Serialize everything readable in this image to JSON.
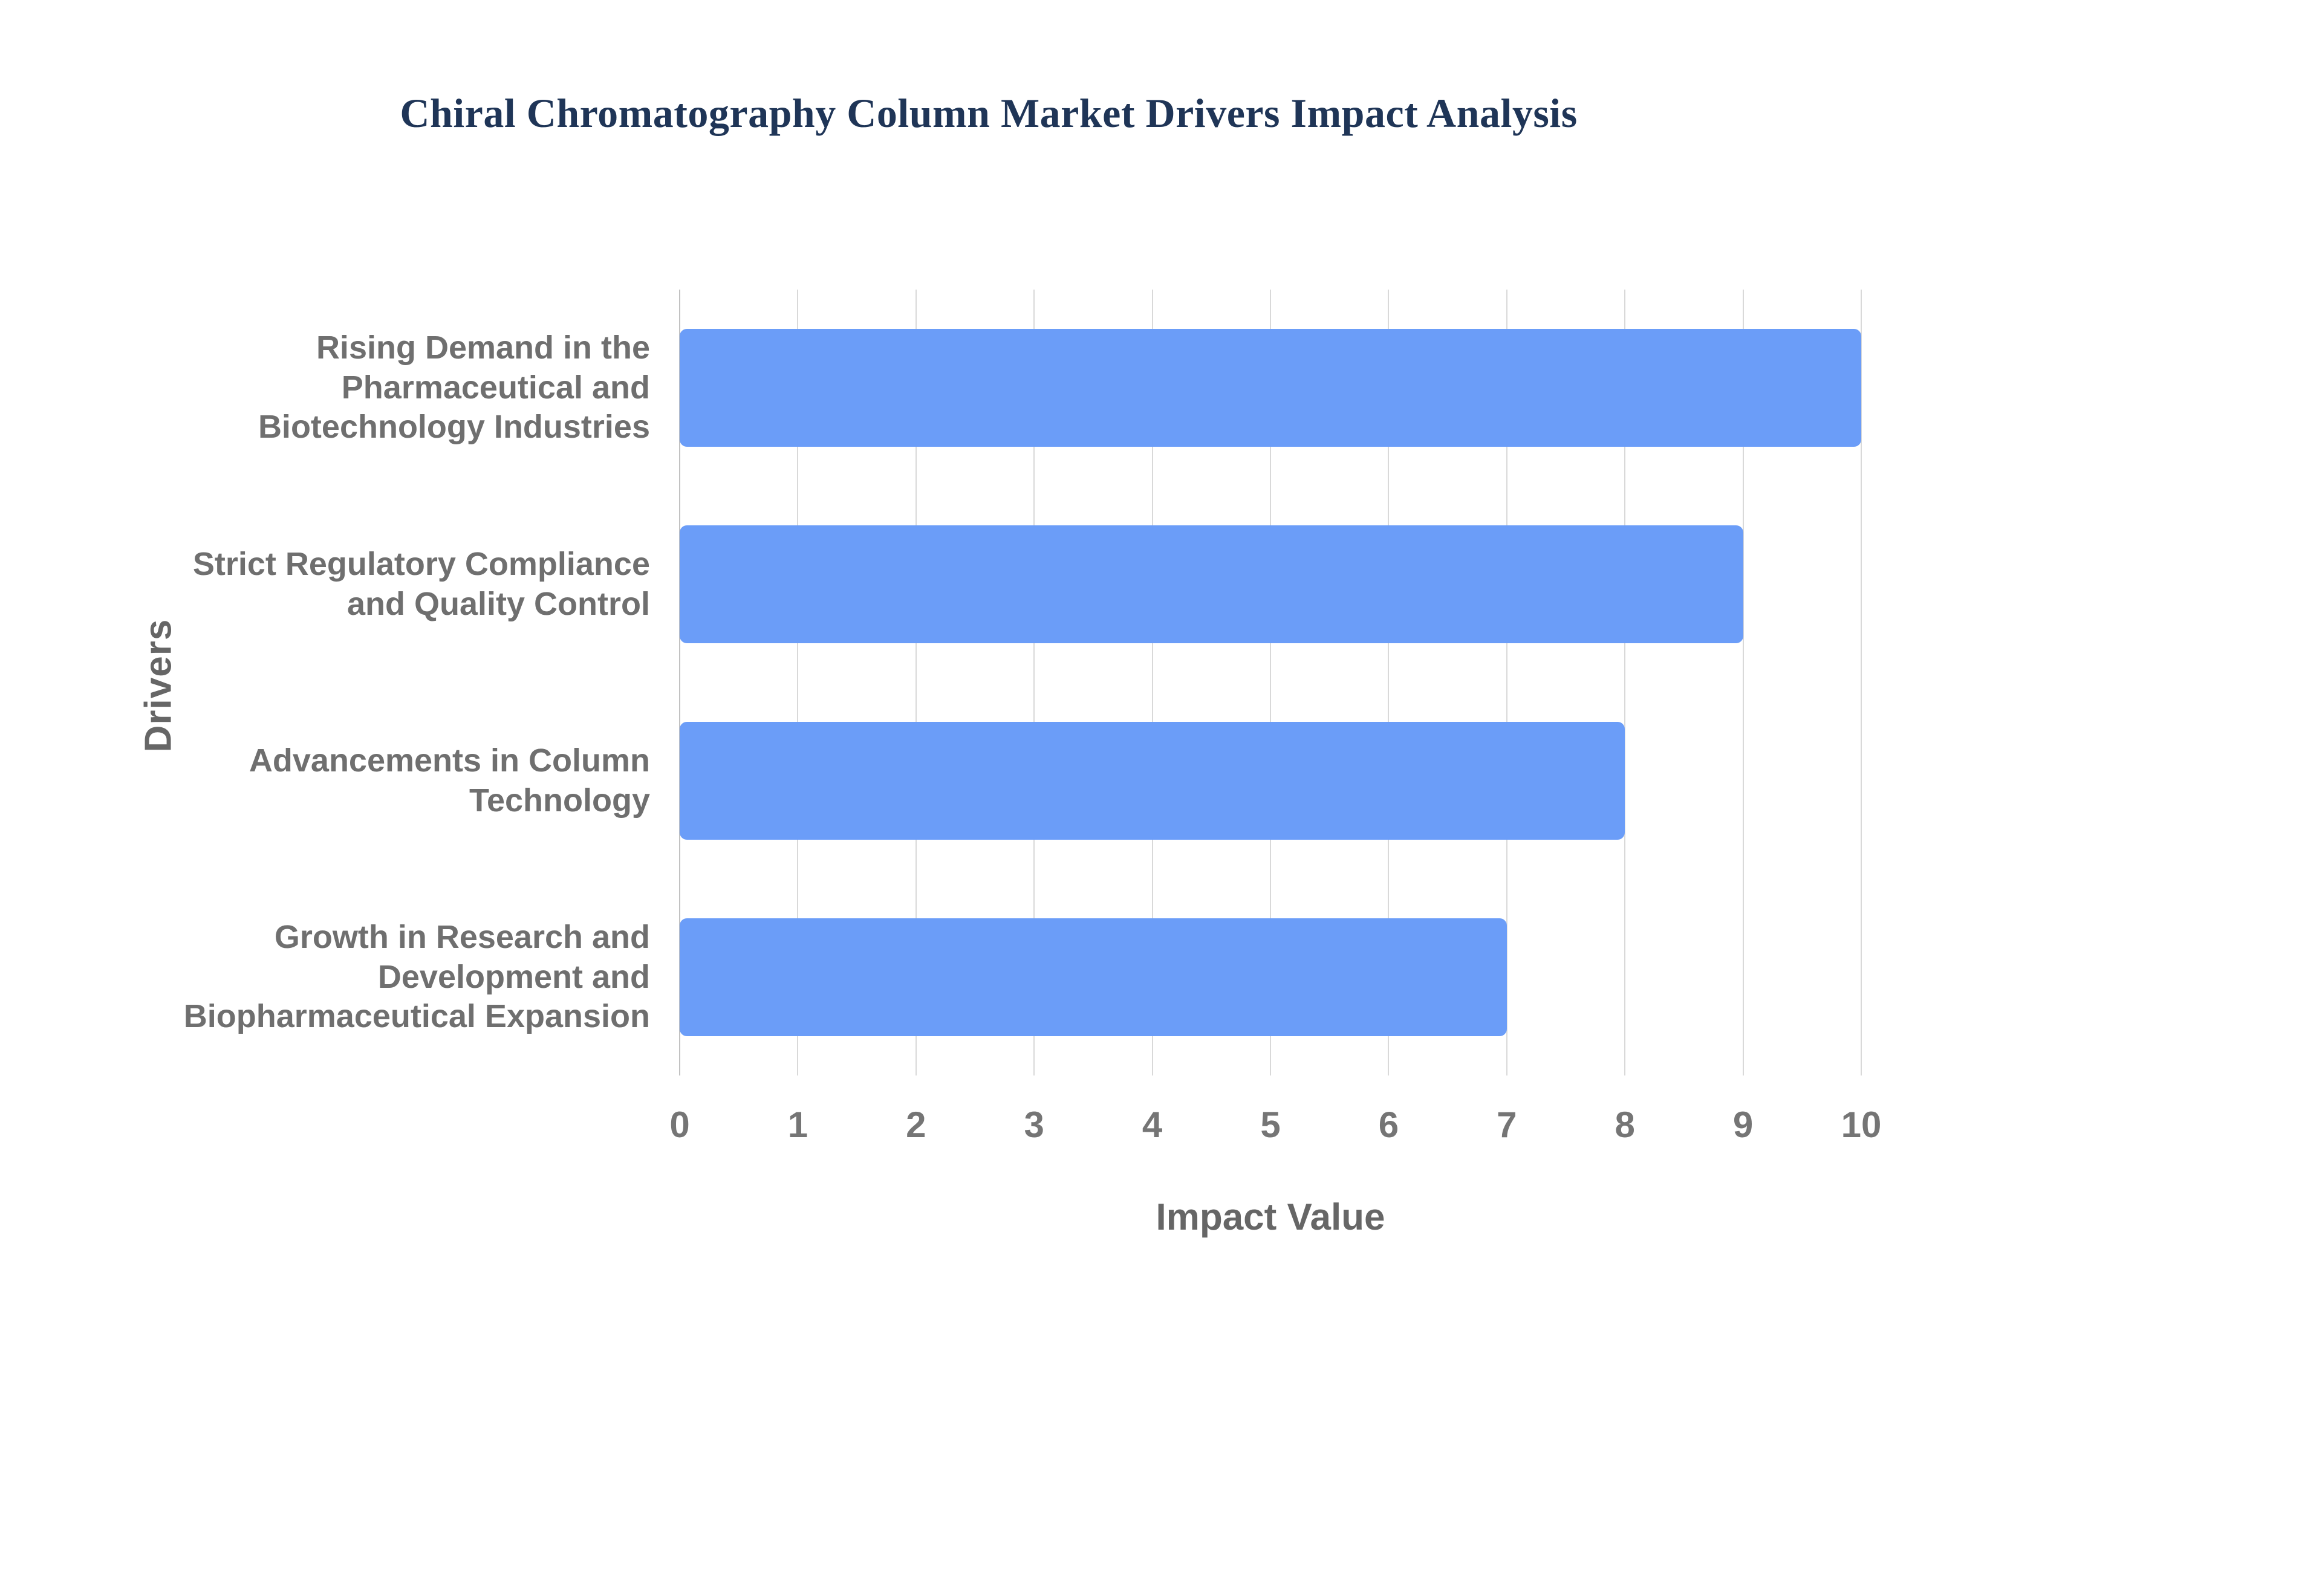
{
  "chart_data": {
    "type": "bar",
    "orientation": "horizontal",
    "title": "Chiral Chromatography Column Market Drivers Impact Analysis",
    "categories": [
      "Rising Demand in the\nPharmaceutical and\nBiotechnology Industries",
      "Strict Regulatory Compliance\nand Quality Control",
      "Advancements in Column\nTechnology",
      "Growth in Research and\nDevelopment and\nBiopharmaceutical Expansion"
    ],
    "values": [
      10,
      9,
      8,
      7
    ],
    "xlabel": "Impact Value",
    "ylabel": "Drivers",
    "xlim": [
      0,
      10
    ],
    "xticks": [
      0,
      1,
      2,
      3,
      4,
      5,
      6,
      7,
      8,
      9,
      10
    ],
    "grid": true,
    "legend": false,
    "colors": {
      "bar": "#6b9df8",
      "grid": "#d9d9d9",
      "axis_line": "#c2c2c2",
      "tick_text": "#757575",
      "category_text": "#6f6f6f",
      "axis_title_text": "#666666",
      "title_text": "#1f3557",
      "background": "#ffffff"
    }
  }
}
